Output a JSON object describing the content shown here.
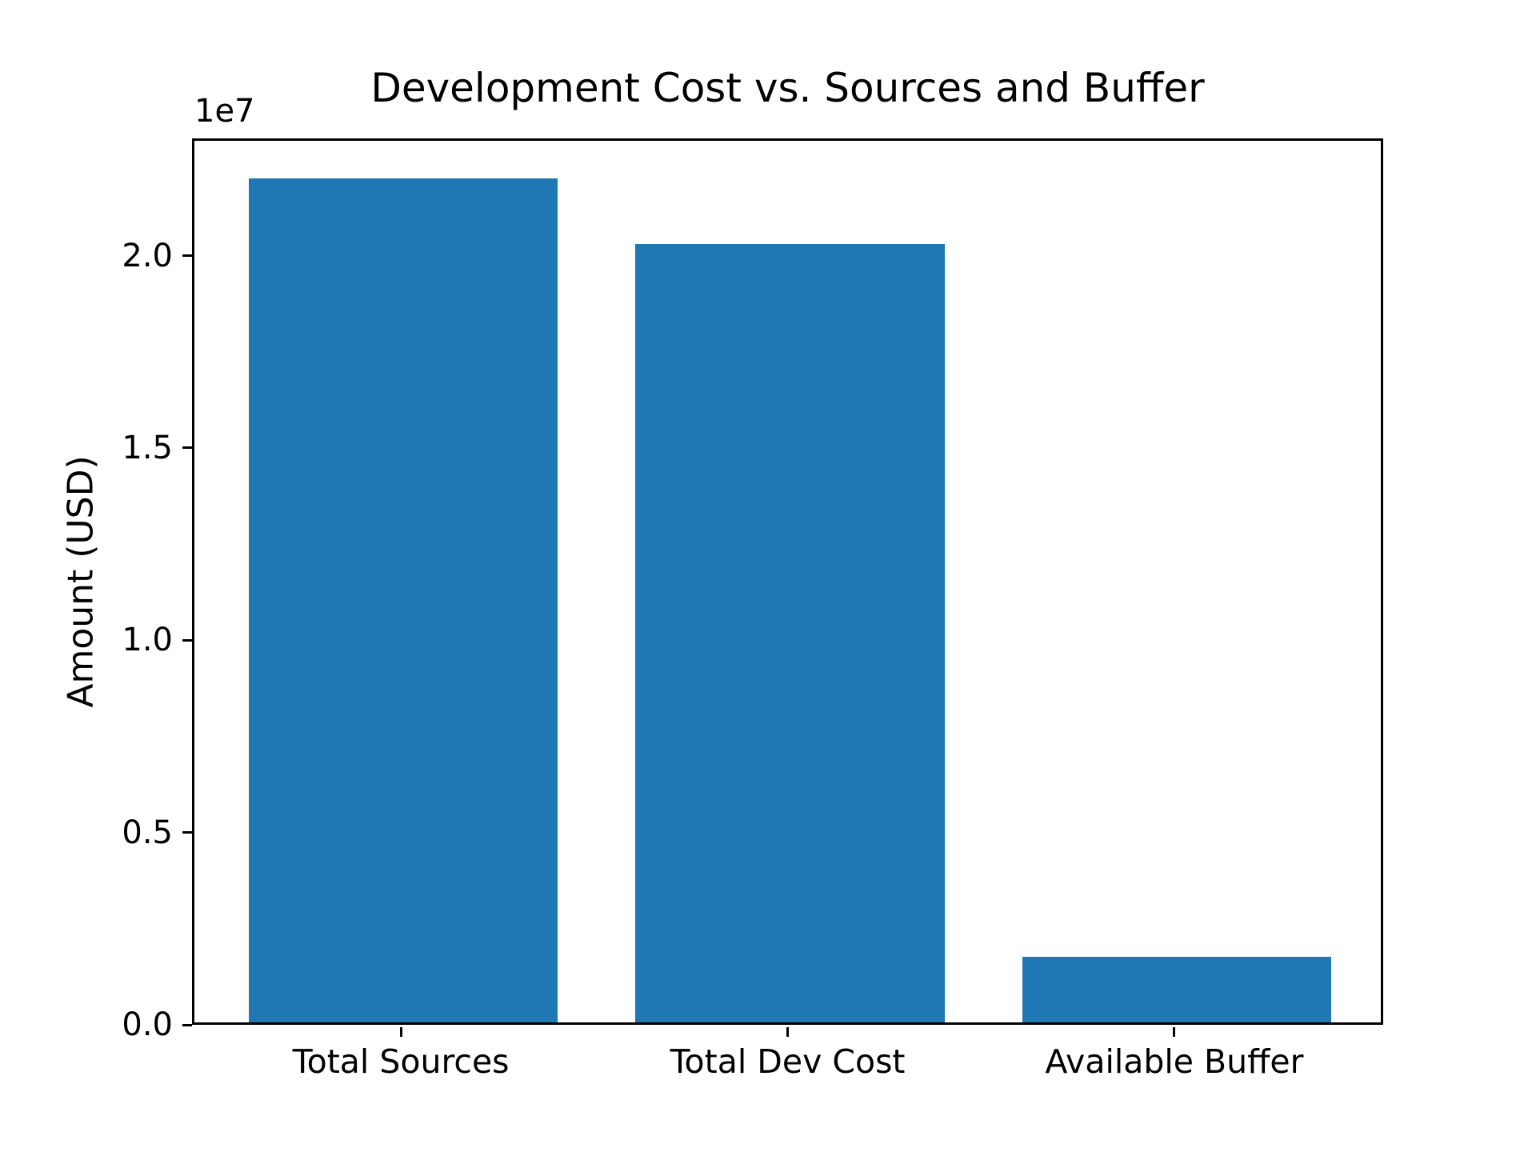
{
  "chart_data": {
    "type": "bar",
    "title": "Development Cost vs. Sources and Buffer",
    "xlabel": "",
    "ylabel": "Amount (USD)",
    "offset_text": "1e7",
    "categories": [
      "Total Sources",
      "Total Dev Cost",
      "Available Buffer"
    ],
    "values": [
      21950000,
      20250000,
      1700000
    ],
    "ylim": [
      0,
      23047500
    ],
    "yticks": [
      0,
      5000000,
      10000000,
      15000000,
      20000000
    ],
    "ytick_labels": [
      "0.0",
      "0.5",
      "1.0",
      "1.5",
      "2.0"
    ],
    "bar_color": "#1f77b4",
    "bar_width_fraction": 0.8,
    "x_margin": 0.05,
    "grid": false,
    "legend": null
  }
}
